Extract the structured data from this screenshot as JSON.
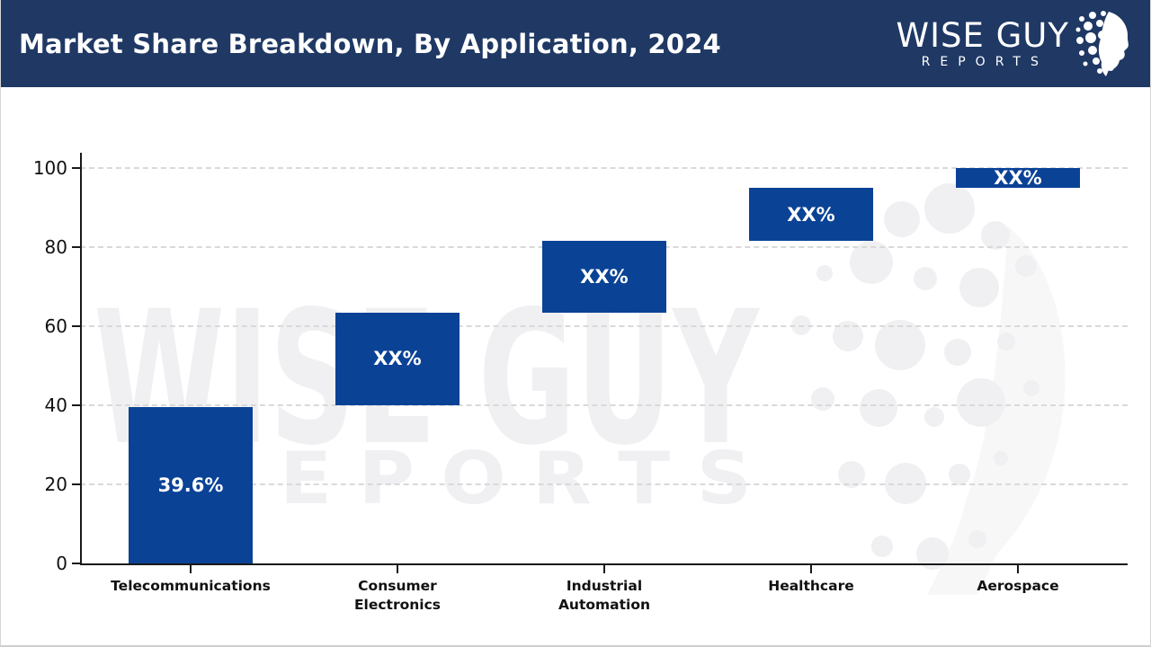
{
  "header": {
    "title": "Market Share Breakdown, By Application, 2024",
    "logo": {
      "line1": "WISE GUY",
      "line2": "REPORTS"
    }
  },
  "watermark": {
    "line1": "WISE GUY",
    "line2": "R E P O R T S"
  },
  "colors": {
    "header_bg": "#1f3864",
    "bar_fill": "#0a4296",
    "bar_label": "#ffffff",
    "gridline": "#d9d9d9",
    "axis": "#1a1a1a",
    "watermark": "#f0f0f3"
  },
  "chart_data": {
    "type": "bar",
    "subtype": "waterfall",
    "title": "Market Share Breakdown, By Application, 2024",
    "xlabel": "",
    "ylabel": "",
    "ylim": [
      0,
      105
    ],
    "yticks": [
      0,
      20,
      40,
      60,
      80,
      100
    ],
    "grid": "dashed-horizontal",
    "categories": [
      "Telecommunications",
      "Consumer Electronics",
      "Industrial Automation",
      "Healthcare",
      "Aerospace"
    ],
    "category_label_lines": [
      [
        "Telecommunications"
      ],
      [
        "Consumer",
        "Electronics"
      ],
      [
        "Industrial",
        "Automation"
      ],
      [
        "Healthcare"
      ],
      [
        "Aerospace"
      ]
    ],
    "segments": [
      {
        "category": "Telecommunications",
        "start": 0,
        "end": 39.6,
        "label": "39.6%"
      },
      {
        "category": "Consumer Electronics",
        "start": 40,
        "end": 63.5,
        "label": "XX%"
      },
      {
        "category": "Industrial Automation",
        "start": 63.5,
        "end": 81.5,
        "label": "XX%"
      },
      {
        "category": "Healthcare",
        "start": 81.5,
        "end": 95,
        "label": "XX%"
      },
      {
        "category": "Aerospace",
        "start": 95,
        "end": 100,
        "label": "XX%"
      }
    ]
  }
}
